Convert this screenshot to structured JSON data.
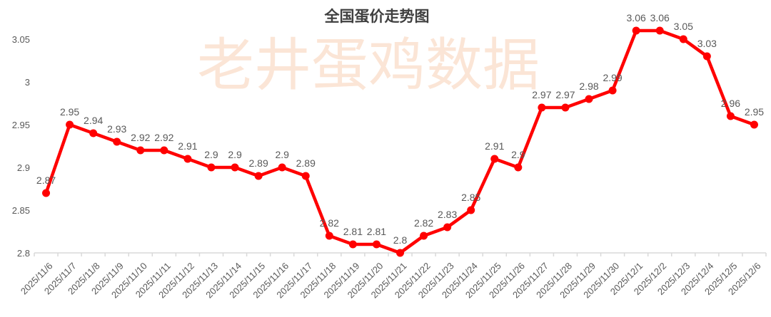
{
  "chart": {
    "title": "全国蛋价走势图",
    "watermark": "老井蛋鸡数据"
  },
  "chart_data": {
    "type": "line",
    "title": "全国蛋价走势图",
    "watermark": "老井蛋鸡数据",
    "categories": [
      "2025/11/6",
      "2025/11/7",
      "2025/11/8",
      "2025/11/9",
      "2025/11/10",
      "2025/11/11",
      "2025/11/12",
      "2025/11/13",
      "2025/11/14",
      "2025/11/15",
      "2025/11/16",
      "2025/11/17",
      "2025/11/18",
      "2025/11/19",
      "2025/11/20",
      "2025/11/21",
      "2025/11/22",
      "2025/11/23",
      "2025/11/24",
      "2025/11/25",
      "2025/11/26",
      "2025/11/27",
      "2025/11/28",
      "2025/11/29",
      "2025/11/30",
      "2025/12/1",
      "2025/12/2",
      "2025/12/3",
      "2025/12/4",
      "2025/12/5",
      "2025/12/6"
    ],
    "values": [
      2.87,
      2.95,
      2.94,
      2.93,
      2.92,
      2.92,
      2.91,
      2.9,
      2.9,
      2.89,
      2.9,
      2.89,
      2.82,
      2.81,
      2.81,
      2.8,
      2.82,
      2.83,
      2.85,
      2.91,
      2.9,
      2.97,
      2.97,
      2.98,
      2.99,
      3.06,
      3.06,
      3.05,
      3.03,
      2.96,
      2.95
    ],
    "point_labels": [
      "2.87",
      "2.95",
      "2.94",
      "2.93",
      "2.92",
      "2.92",
      "2.91",
      "2.9",
      "2.9",
      "2.89",
      "2.9",
      "2.89",
      "2.82",
      "2.81",
      "2.81",
      "2.8",
      "2.82",
      "2.83",
      "2.85",
      "2.91",
      "2.9",
      "2.97",
      "2.97",
      "2.98",
      "2.99",
      "3.06",
      "3.06",
      "3.05",
      "3.03",
      "2.96",
      "2.95"
    ],
    "y_ticks": [
      {
        "value": 2.8,
        "label": "2.8"
      },
      {
        "value": 2.85,
        "label": "2.85"
      },
      {
        "value": 2.9,
        "label": "2.9"
      },
      {
        "value": 2.95,
        "label": "2.95"
      },
      {
        "value": 3.0,
        "label": "3"
      },
      {
        "value": 3.05,
        "label": "3.05"
      }
    ],
    "ylim": [
      2.8,
      3.08
    ],
    "xlabel": "",
    "ylabel": "",
    "grid": false,
    "legend": false,
    "colors": {
      "line": "#ff0000",
      "marker": "#ff0000",
      "data_label": "#595959",
      "axis_label": "#595959",
      "axis_line": "#d9d9d9",
      "title": "#404040",
      "watermark": "#fbe5d6",
      "background": "#ffffff"
    }
  }
}
